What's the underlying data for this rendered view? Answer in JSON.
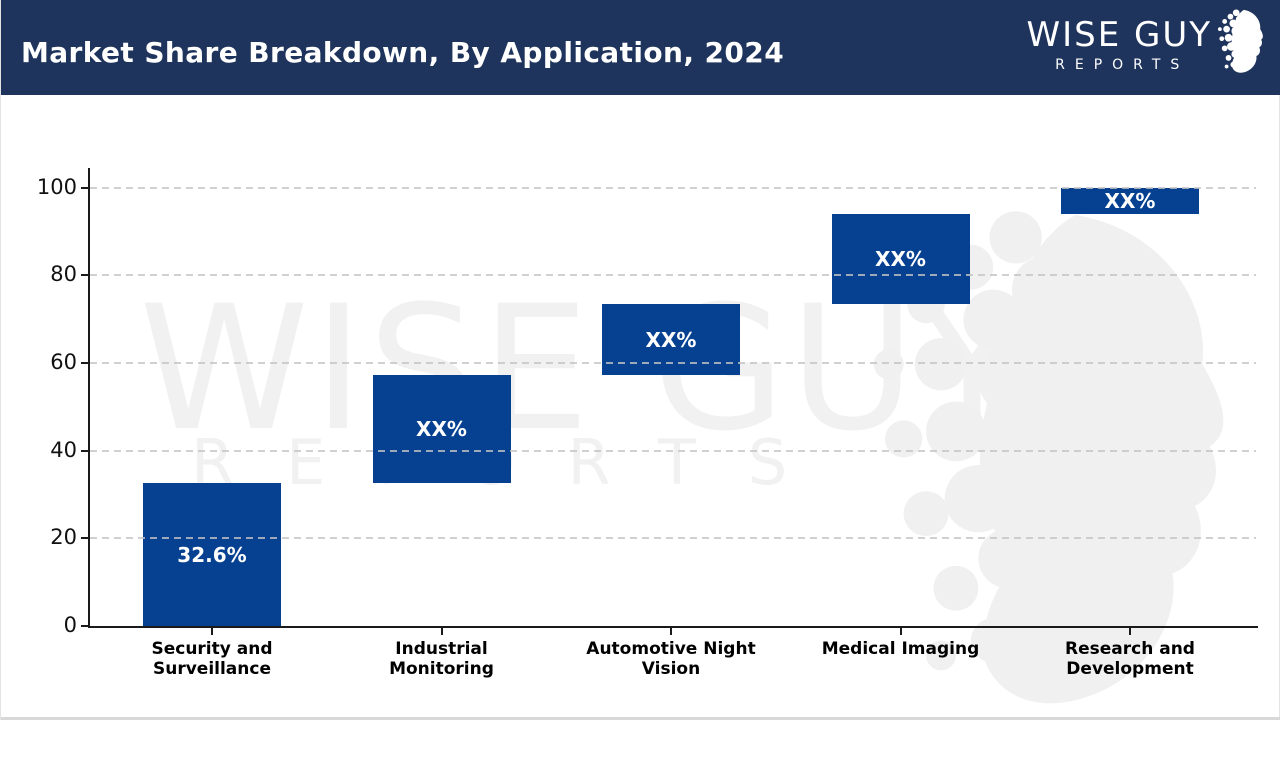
{
  "header": {
    "title": "Market Share Breakdown, By Application, 2024",
    "bg_color": "#1f345c",
    "logo": {
      "line1": "WISE GUY",
      "line2": "REPORTS"
    }
  },
  "watermark": {
    "line1": "WISE GUY",
    "line2": "REPORTS"
  },
  "chart_data": {
    "type": "bar",
    "subtype": "waterfall-floating-bars",
    "title": "",
    "xlabel": "",
    "ylabel": "",
    "categories": [
      "Security and\nSurveillance",
      "Industrial\nMonitoring",
      "Automotive Night\nVision",
      "Medical Imaging",
      "Research and\nDevelopment"
    ],
    "segments": [
      {
        "category": "Security and Surveillance",
        "start": 0,
        "end": 32.6,
        "label": "32.6%"
      },
      {
        "category": "Industrial Monitoring",
        "start": 32.6,
        "end": 57.2,
        "label": "XX%"
      },
      {
        "category": "Automotive Night Vision",
        "start": 57.2,
        "end": 73.4,
        "label": "XX%"
      },
      {
        "category": "Medical Imaging",
        "start": 73.4,
        "end": 93.9,
        "label": "XX%"
      },
      {
        "category": "Research and Development",
        "start": 93.9,
        "end": 100,
        "label": "XX%"
      }
    ],
    "yticks": [
      0,
      20,
      40,
      60,
      80,
      100
    ],
    "ylim": [
      0,
      105
    ],
    "grid": true,
    "gridline_style": "dashed",
    "bar_color": "#064191",
    "bar_label_color": "#ffffff",
    "axis_color": "#1a1a1a"
  }
}
